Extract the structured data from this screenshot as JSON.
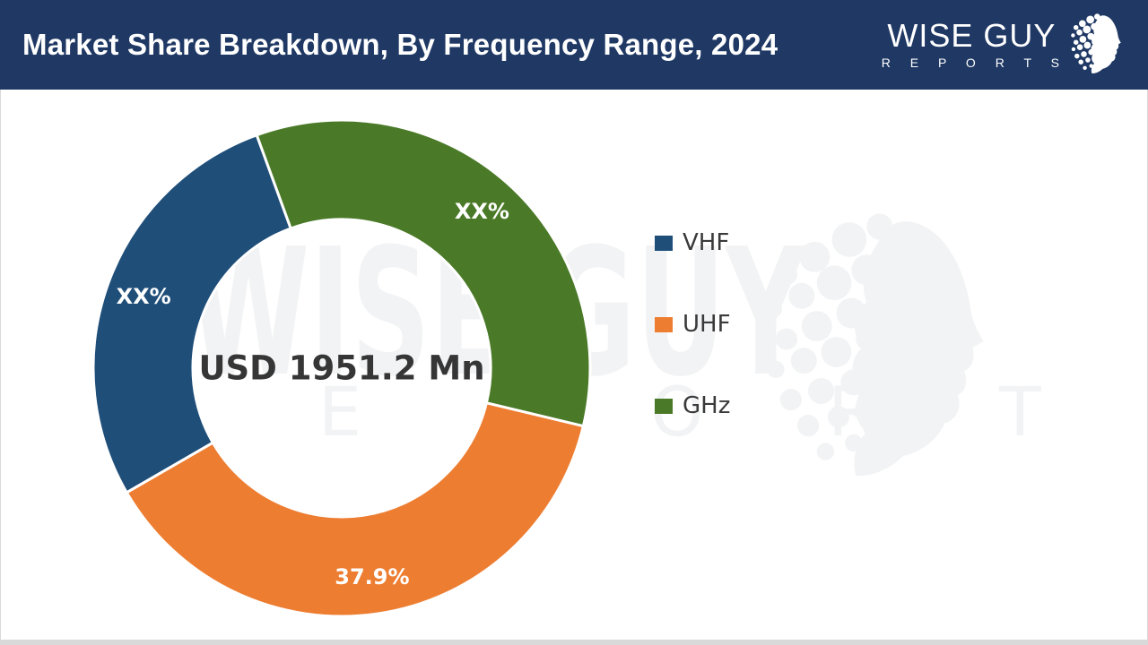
{
  "header": {
    "title": "Market Share Breakdown, By Frequency Range, 2024",
    "logo": {
      "line1": "WISE GUY",
      "line2": "R E P O R T S"
    }
  },
  "watermark": {
    "line1": "WISE GUY",
    "line2": "R E P O R T S"
  },
  "chart_data": {
    "type": "pie",
    "subtype": "donut",
    "title": "Market Share Breakdown, By Frequency Range, 2024",
    "center_label": "USD 1951.2 Mn",
    "unit": "percent of market share",
    "start_angle_deg": 110,
    "direction": "counterclockwise",
    "inner_radius_ratio": 0.6,
    "legend_position": "right",
    "segments": [
      {
        "name": "VHF",
        "value_pct": 27.8,
        "label": "XX%",
        "color": "#1F4E79"
      },
      {
        "name": "UHF",
        "value_pct": 37.9,
        "label": "37.9%",
        "color": "#ED7D31"
      },
      {
        "name": "GHz",
        "value_pct": 34.3,
        "label": "XX%",
        "color": "#4A7A28"
      }
    ]
  },
  "colors": {
    "header_bg": "#1F3864",
    "canvas_bg": "#FFFFFF",
    "watermark": "#F2F3F4",
    "bottom_strip": "#D9D9D9",
    "slice_label_text": "#FFFFFF",
    "center_label_text": "#363636",
    "legend_text": "#3A3A3A"
  }
}
